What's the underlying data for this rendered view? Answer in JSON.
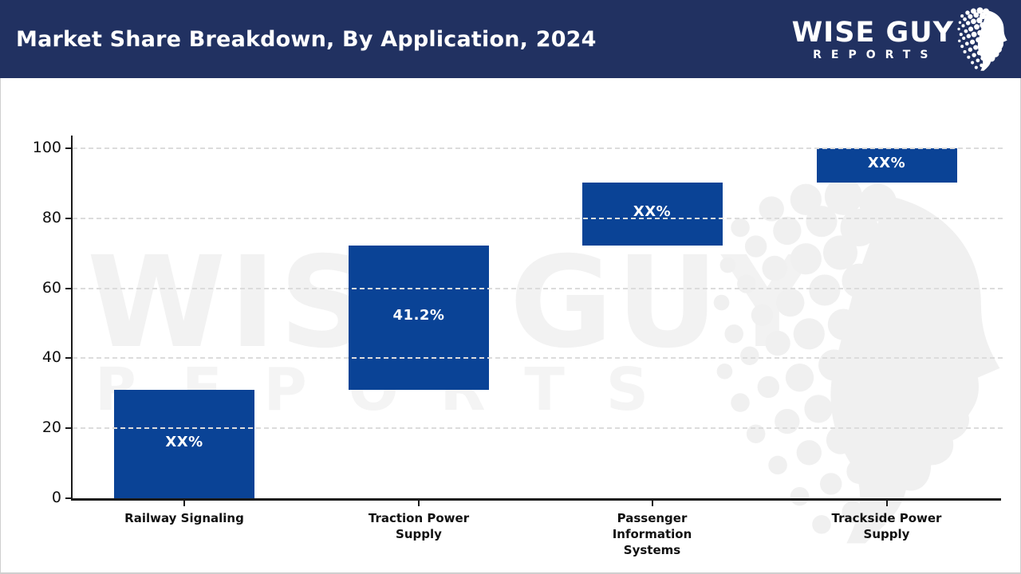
{
  "header": {
    "title": "Market Share Breakdown, By Application, 2024",
    "logo": {
      "name": "WISE GUY",
      "subtitle": "REPORTS"
    }
  },
  "watermark": {
    "name": "WISE GUY",
    "subtitle": "REPORTS"
  },
  "colors": {
    "header_bg": "#213161",
    "bar": "#0A4396",
    "bar_label": "#FFFFFF",
    "grid": "#DCDCDC",
    "axis": "#1A1A1A",
    "watermark": "#F2F2F2",
    "page_bg": "#FFFFFF"
  },
  "chart_data": {
    "type": "bar",
    "subtype": "waterfall-stacked-segments",
    "title": "Market Share Breakdown, By Application, 2024",
    "categories": [
      "Railway Signaling",
      "Traction Power Supply",
      "Passenger Information Systems",
      "Trackside Power Supply"
    ],
    "category_label_lines": [
      [
        "Railway Signaling"
      ],
      [
        "Traction Power",
        "Supply"
      ],
      [
        "Passenger",
        "Information",
        "Systems"
      ],
      [
        "Trackside Power",
        "Supply"
      ]
    ],
    "segments": [
      {
        "category": "Railway Signaling",
        "label": "XX%",
        "start": 0,
        "end": 31.0,
        "value": 31.0
      },
      {
        "category": "Traction Power Supply",
        "label": "41.2%",
        "start": 31.0,
        "end": 72.2,
        "value": 41.2
      },
      {
        "category": "Passenger Information Systems",
        "label": "XX%",
        "start": 72.2,
        "end": 90.3,
        "value": 18.1
      },
      {
        "category": "Trackside Power Supply",
        "label": "XX%",
        "start": 90.3,
        "end": 100.0,
        "value": 9.7
      }
    ],
    "yticks": [
      0,
      20,
      40,
      60,
      80,
      100
    ],
    "ylim": [
      0,
      100
    ],
    "xlabel": "",
    "ylabel": "",
    "grid": "horizontal-dashed",
    "legend": "none"
  }
}
